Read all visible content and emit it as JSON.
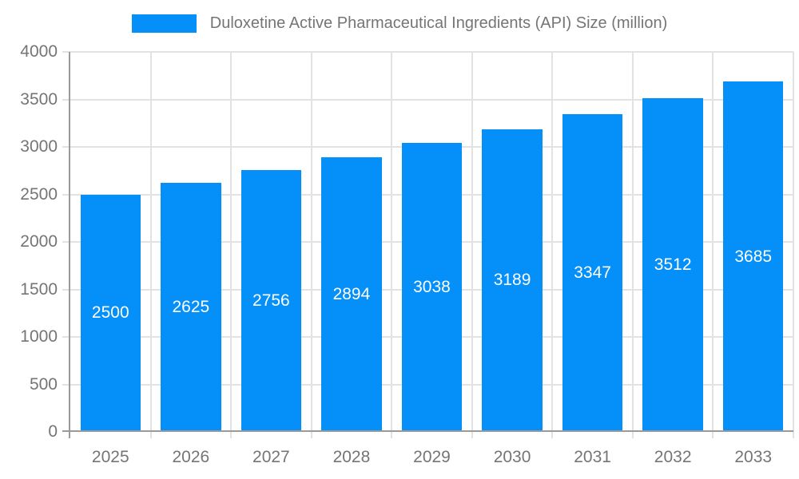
{
  "chart_data": {
    "type": "bar",
    "title": "",
    "legend_label": "Duloxetine Active Pharmaceutical Ingredients (API) Size (million)",
    "legend_position": "top",
    "categories": [
      "2025",
      "2026",
      "2027",
      "2028",
      "2029",
      "2030",
      "2031",
      "2032",
      "2033"
    ],
    "values": [
      2500,
      2625,
      2756,
      2894,
      3038,
      3189,
      3347,
      3512,
      3685
    ],
    "xlabel": "",
    "ylabel": "",
    "ylim": [
      0,
      4000
    ],
    "ytick_step": 500,
    "ytick_labels": [
      "0",
      "500",
      "1000",
      "1500",
      "2000",
      "2500",
      "3000",
      "3500",
      "4000"
    ],
    "grid": true,
    "value_labels_shown": true,
    "colors": {
      "bar": "#0490f8",
      "grid": "#e2e2e2",
      "axis": "#9a9a9a",
      "tick_label": "#757575",
      "legend_text": "#757575",
      "value_label": "#ffffff",
      "background": "#ffffff"
    }
  }
}
